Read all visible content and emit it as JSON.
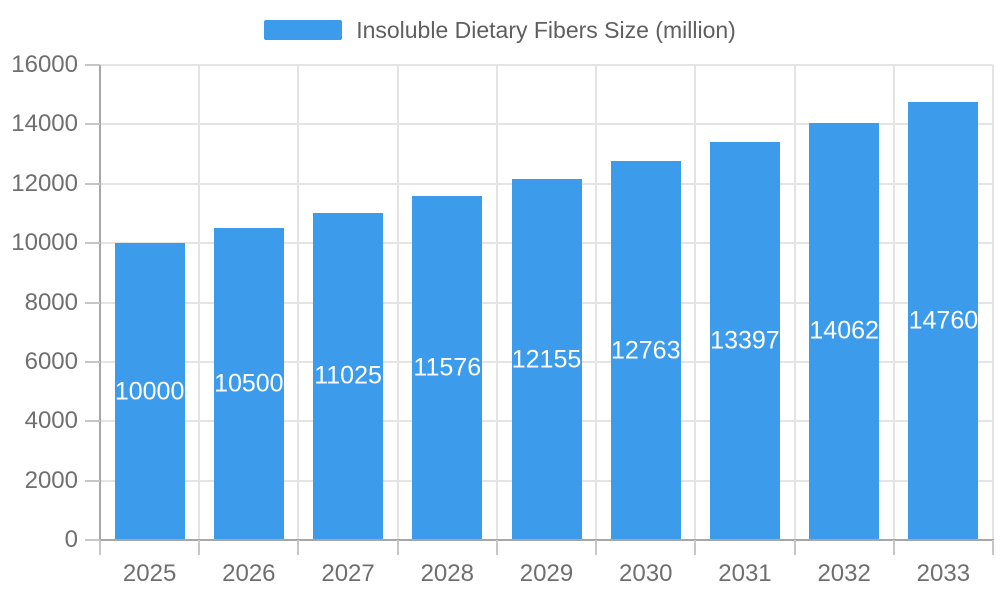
{
  "legend": {
    "items": [
      {
        "label": "Insoluble Dietary Fibers Size (million)",
        "color": "#3C9BEB"
      }
    ]
  },
  "chart_data": {
    "type": "bar",
    "title": "",
    "categories": [
      "2025",
      "2026",
      "2027",
      "2028",
      "2029",
      "2030",
      "2031",
      "2032",
      "2033"
    ],
    "series": [
      {
        "name": "Insoluble Dietary Fibers Size (million)",
        "values": [
          10000,
          10500,
          11025,
          11576,
          12155,
          12763,
          13397,
          14062,
          14760
        ],
        "color": "#3C9BEB",
        "data_label_color": "#FFFFFF",
        "data_labels_visible": true
      }
    ],
    "xlabel": "",
    "ylabel": "",
    "ylim": [
      0,
      16000
    ],
    "yticks": [
      0,
      2000,
      4000,
      6000,
      8000,
      10000,
      12000,
      14000,
      16000
    ],
    "grid": "horizontal-and-vertical",
    "legend_position": "top-center"
  },
  "colors": {
    "bar": "#3C9BEB",
    "grid_line": "#E4E4E4",
    "axis_line": "#A6A6A6",
    "tick": "#C6C6C6",
    "axis_text": "#6F6F6F",
    "legend_text": "#5F5F5F",
    "value_label": "#FFFFFF",
    "background": "#FFFFFF"
  }
}
